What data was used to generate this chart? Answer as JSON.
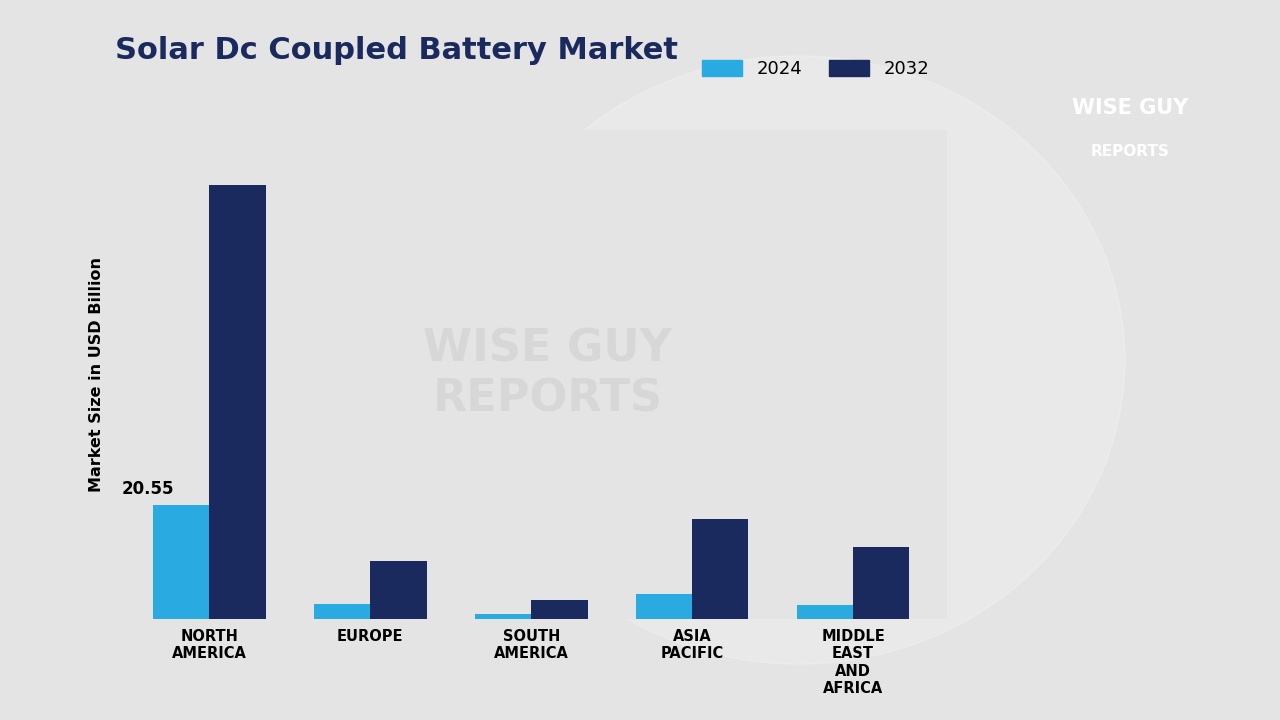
{
  "title": "Solar Dc Coupled Battery Market",
  "ylabel": "Market Size in USD Billion",
  "categories": [
    "NORTH\nAMERICA",
    "EUROPE",
    "SOUTH\nAMERICA",
    "ASIA\nPACIFIC",
    "MIDDLE\nEAST\nAND\nAFRICA"
  ],
  "series_2024": [
    20.55,
    2.8,
    0.9,
    4.5,
    2.5
  ],
  "series_2032": [
    78.0,
    10.5,
    3.5,
    18.0,
    13.0
  ],
  "color_2024": "#29ABE2",
  "color_2032": "#1B2A5E",
  "annotation_value": "20.55",
  "background_color": "#E4E4E4",
  "title_color": "#1B2A5E",
  "bar_width": 0.35,
  "legend_labels": [
    "2024",
    "2032"
  ],
  "right_panel_color": "#1B2A5E",
  "ylim_max": 88
}
